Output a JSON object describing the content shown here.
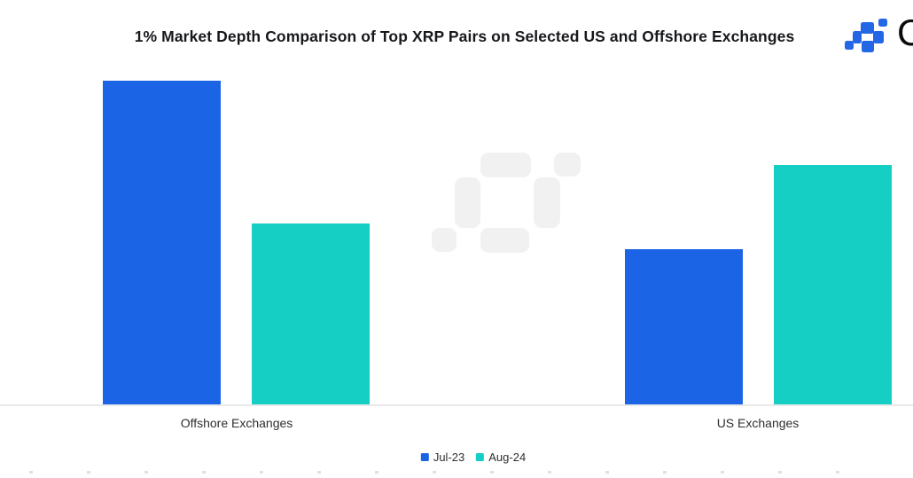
{
  "header": {
    "title": "1% Market Depth Comparison of Top XRP Pairs on Selected US and Offshore Exchanges",
    "brand": {
      "logo_icon": "ccdata-pixel-logo",
      "wordmark_partial": "C"
    }
  },
  "chart_data": {
    "type": "bar",
    "title": "1% Market Depth Comparison of Top XRP Pairs on Selected US and Offshore Exchanges",
    "categories": [
      "Offshore Exchanges",
      "US Exchanges"
    ],
    "series": [
      {
        "name": "Jul-23",
        "color": "#1B64E6",
        "values": [
          100,
          48
        ]
      },
      {
        "name": "Aug-24",
        "color": "#15CEC4",
        "values": [
          56,
          74
        ]
      }
    ],
    "xlabel": "",
    "ylabel": "",
    "value_note": "No y-axis or data labels shown; values are relative bar heights normalized to tallest bar = 100",
    "ylim": [
      0,
      107
    ],
    "grid": false,
    "legend_position": "bottom",
    "watermark": "ccdata-pixel-logo-gray"
  },
  "colors": {
    "bar_blue": "#1B64E6",
    "bar_teal": "#15CEC4",
    "logo_blue": "#2367E5",
    "watermark_gray": "#F1F1F1",
    "baseline_gray": "#E9E9E9",
    "title_text": "#17181C",
    "label_text": "#2E2F33"
  }
}
